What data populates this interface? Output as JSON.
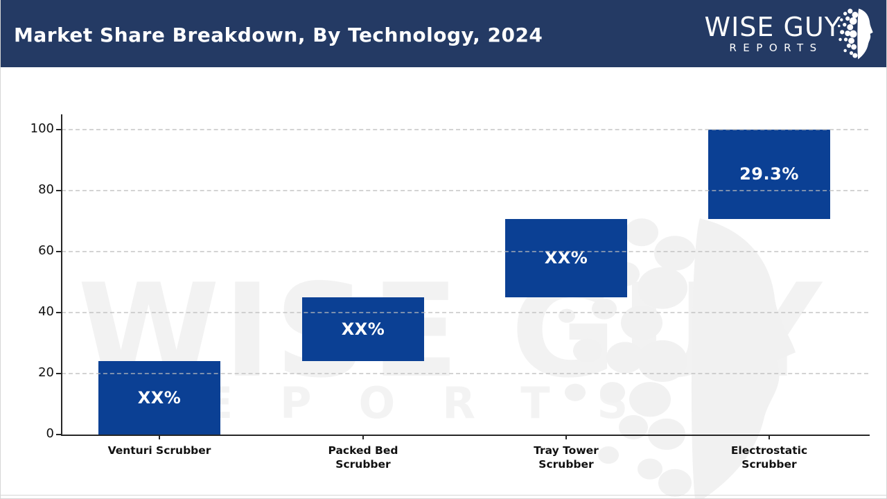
{
  "header": {
    "title": "Market Share Breakdown, By Technology, 2024",
    "background_color": "#243a64",
    "logo": {
      "brand": "WISE GUY",
      "sub": "REPORTS"
    }
  },
  "watermark": {
    "brand": "WISE GUY",
    "sub": "REPORTS"
  },
  "chart_data": {
    "type": "bar",
    "variant": "waterfall-floating-bars",
    "title": "Market Share Breakdown, By Technology, 2024",
    "categories": [
      "Venturi Scrubber",
      "Packed Bed Scrubber",
      "Tray Tower Scrubber",
      "Electrostatic Scrubber"
    ],
    "category_label_lines": [
      [
        "Venturi Scrubber"
      ],
      [
        "Packed Bed",
        "Scrubber"
      ],
      [
        "Tray Tower",
        "Scrubber"
      ],
      [
        "Electrostatic",
        "Scrubber"
      ]
    ],
    "bars": [
      {
        "category": "Venturi Scrubber",
        "start": 0,
        "end": 24.1,
        "label": "XX%"
      },
      {
        "category": "Packed Bed Scrubber",
        "start": 24.1,
        "end": 45.0,
        "label": "XX%"
      },
      {
        "category": "Tray Tower Scrubber",
        "start": 45.0,
        "end": 70.7,
        "label": "XX%"
      },
      {
        "category": "Electrostatic Scrubber",
        "start": 70.7,
        "end": 100,
        "label": "29.3%"
      }
    ],
    "xlabel": "",
    "ylabel": "",
    "ylim": [
      0,
      105
    ],
    "yticks": [
      0,
      20,
      40,
      60,
      80,
      100
    ],
    "grid": "horizontal-dashed-over-bars",
    "legend": null,
    "bar_color": "#0b4094",
    "bar_label_color": "#ffffff",
    "axis_color": "#262626"
  }
}
